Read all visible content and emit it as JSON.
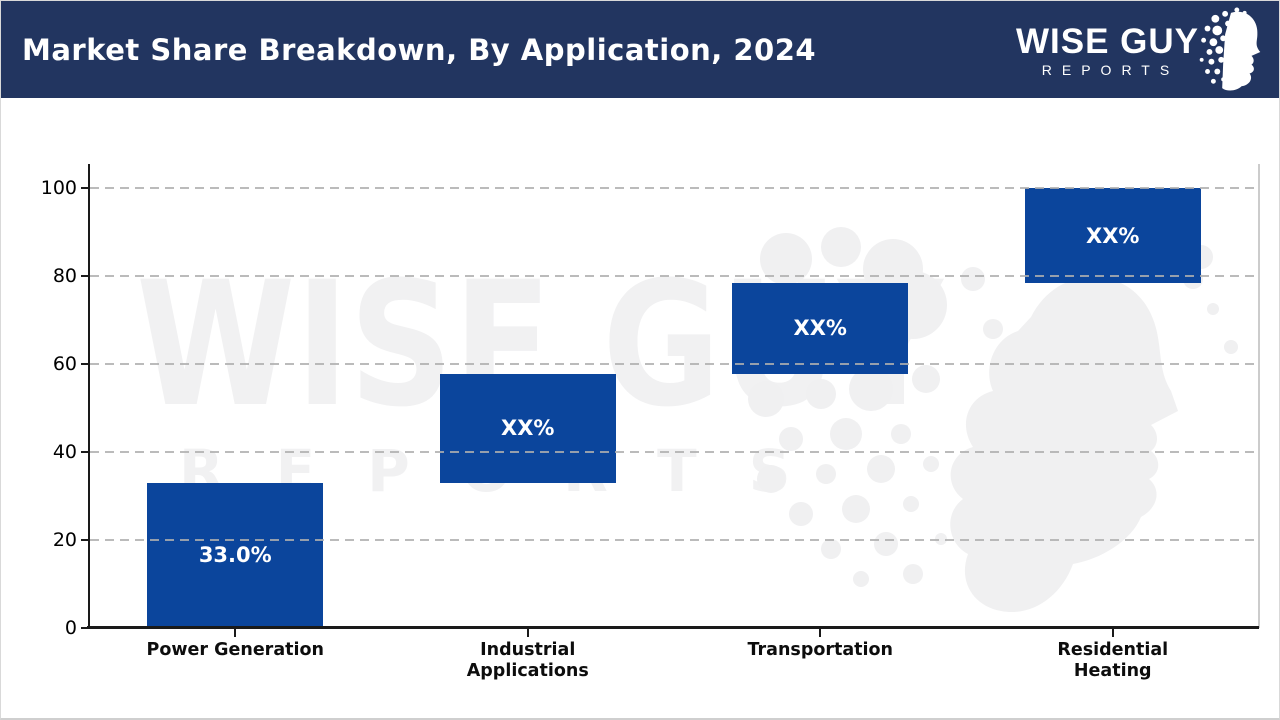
{
  "header": {
    "title": "Market Share Breakdown, By Application, 2024",
    "logo": {
      "brand": "WISE GUY",
      "sub": "REPORTS"
    }
  },
  "watermark": {
    "brand": "WISE GUY",
    "sub": "REPORTS"
  },
  "chart_data": {
    "type": "bar",
    "variant": "waterfall",
    "title": "Market Share Breakdown, By Application, 2024",
    "categories": [
      "Power Generation",
      "Industrial\nApplications",
      "Transportation",
      "Residential\nHeating"
    ],
    "segments": [
      {
        "category": "Power Generation",
        "from": 0,
        "to": 33.0,
        "label": "33.0%"
      },
      {
        "category": "Industrial Applications",
        "from": 33.0,
        "to": 57.75,
        "label": "XX%"
      },
      {
        "category": "Transportation",
        "from": 57.75,
        "to": 78.4,
        "label": "XX%"
      },
      {
        "category": "Residential Heating",
        "from": 78.4,
        "to": 100.0,
        "label": "XX%"
      }
    ],
    "ylim": [
      0,
      100
    ],
    "yticks": [
      0,
      20,
      40,
      60,
      80,
      100
    ],
    "xlabel": "",
    "ylabel": "",
    "grid": {
      "axis": "y",
      "style": "dashed",
      "drawn_over_bars": true
    },
    "legend": null,
    "colors": {
      "bar": "#0b459c",
      "bar_label": "#ffffff",
      "axis": "#1a1a1a",
      "grid": "#c8c8c8",
      "header_bg": "#223560",
      "watermark": "#f1f1f2"
    }
  }
}
